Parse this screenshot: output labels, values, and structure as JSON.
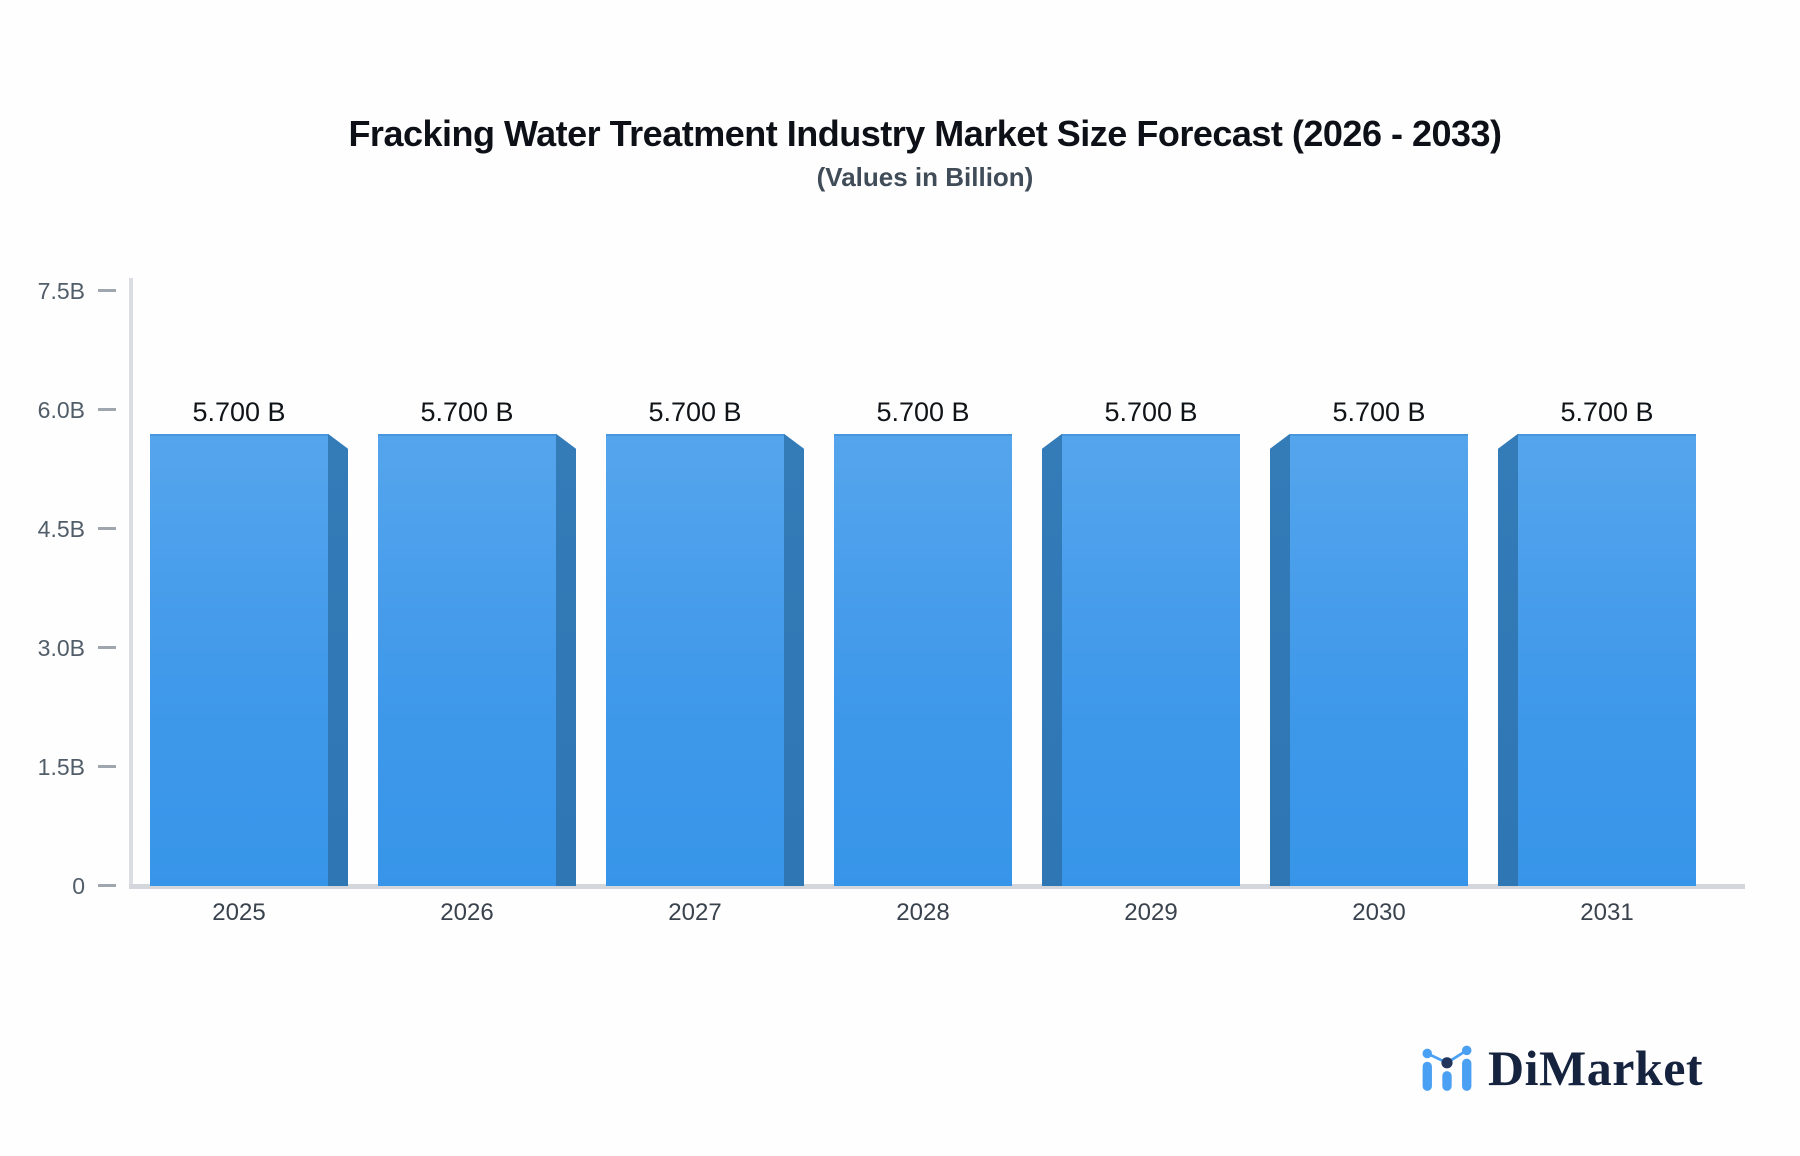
{
  "chart_data": {
    "type": "bar",
    "title": "Fracking Water Treatment Industry Market Size Forecast (2026 - 2033)",
    "subtitle": "(Values in Billion)",
    "categories": [
      "2025",
      "2026",
      "2027",
      "2028",
      "2029",
      "2030",
      "2031"
    ],
    "values": [
      5.7,
      5.7,
      5.7,
      5.7,
      5.7,
      5.7,
      5.7
    ],
    "value_labels": [
      "5.700 B",
      "5.700 B",
      "5.700 B",
      "5.700 B",
      "5.700 B",
      "5.700 B",
      "5.700 B"
    ],
    "yticks": [
      {
        "label": "0",
        "value": 0
      },
      {
        "label": "1.5B",
        "value": 1.5
      },
      {
        "label": "3.0B",
        "value": 3.0
      },
      {
        "label": "4.5B",
        "value": 4.5
      },
      {
        "label": "6.0B",
        "value": 6.0
      },
      {
        "label": "7.5B",
        "value": 7.5
      }
    ],
    "ylim": [
      0,
      7.5
    ],
    "xlabel": "",
    "ylabel": "",
    "grid": false,
    "legend": false,
    "bar_color_top": "#55a5ed",
    "bar_color_bottom": "#3795e9",
    "bar_side_color": "#2e76b4",
    "axis_color": "#d3d7db"
  },
  "logo": {
    "brand": "DiMarket",
    "icon": "bar-line-chart-icon",
    "icon_blue": "#4aa0f2",
    "icon_navy": "#22355c"
  }
}
